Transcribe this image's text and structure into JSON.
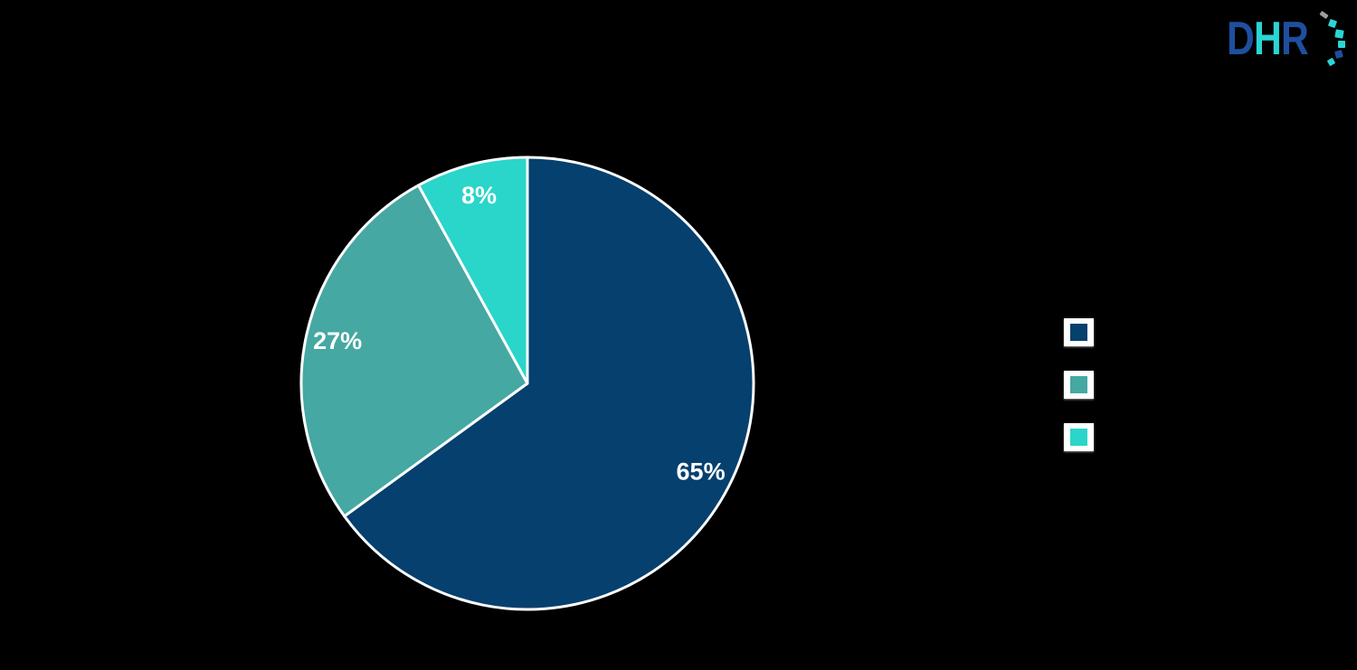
{
  "page": {
    "background_color": "#000000"
  },
  "chart_data": {
    "type": "pie",
    "title": "",
    "slices": [
      {
        "label": "65%",
        "value": 65,
        "color": "#05406E"
      },
      {
        "label": "27%",
        "value": 27,
        "color": "#45A8A2"
      },
      {
        "label": "8%",
        "value": 8,
        "color": "#2AD5C9"
      }
    ],
    "start_angle_deg": 0,
    "direction": "clockwise",
    "data_label_color": "#FFFFFF",
    "slice_outline_color": "#FFFFFF",
    "legend_position": "right",
    "legend_swatch_background": "#FFFFFF"
  },
  "logo": {
    "text": "DHR",
    "letters": [
      {
        "char": "D",
        "color": "#1E4F9F"
      },
      {
        "char": "H",
        "color": "#2BD5D5"
      },
      {
        "char": "R",
        "color": "#1E4F9F"
      }
    ],
    "accent_colors": {
      "blue": "#1E4F9F",
      "cyan": "#2BD5D5",
      "gray": "#9E9E9E"
    }
  }
}
